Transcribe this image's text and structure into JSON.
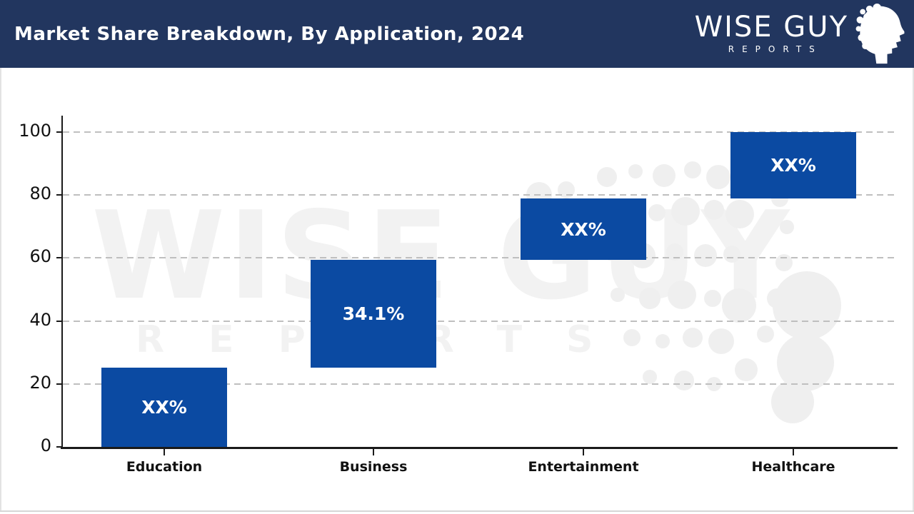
{
  "header": {
    "title": "Market Share Breakdown, By Application, 2024",
    "logo": {
      "line1": "WISE GUY",
      "line2": "REPORTS"
    }
  },
  "watermark": {
    "line1": "WISE GUY",
    "line2": "REPORTS"
  },
  "colors": {
    "header_bg": "#22365f",
    "bar": "#0b4aa2",
    "axis": "#1a1a1a",
    "grid": "#bfbfbf",
    "watermark": "#f2f2f2",
    "watermark_dots": "#efefef",
    "tick_text": "#111111"
  },
  "chart_data": {
    "type": "bar",
    "subtype": "waterfall",
    "title": "Market Share Breakdown, By Application, 2024",
    "categories": [
      "Education",
      "Business",
      "Entertainment",
      "Healthcare"
    ],
    "segments": [
      {
        "category": "Education",
        "start": 0,
        "end": 25.2,
        "value": 25.2,
        "label": "XX%"
      },
      {
        "category": "Business",
        "start": 25.2,
        "end": 59.3,
        "value": 34.1,
        "label": "34.1%"
      },
      {
        "category": "Entertainment",
        "start": 59.3,
        "end": 79.0,
        "value": 19.7,
        "label": "XX%"
      },
      {
        "category": "Healthcare",
        "start": 79.0,
        "end": 100.0,
        "value": 21.0,
        "label": "XX%"
      }
    ],
    "yticks": [
      0,
      20,
      40,
      60,
      80,
      100
    ],
    "ylim": [
      0,
      105
    ],
    "xlabel": "",
    "ylabel": "",
    "grid": "horizontal-dashed",
    "legend": "none"
  }
}
